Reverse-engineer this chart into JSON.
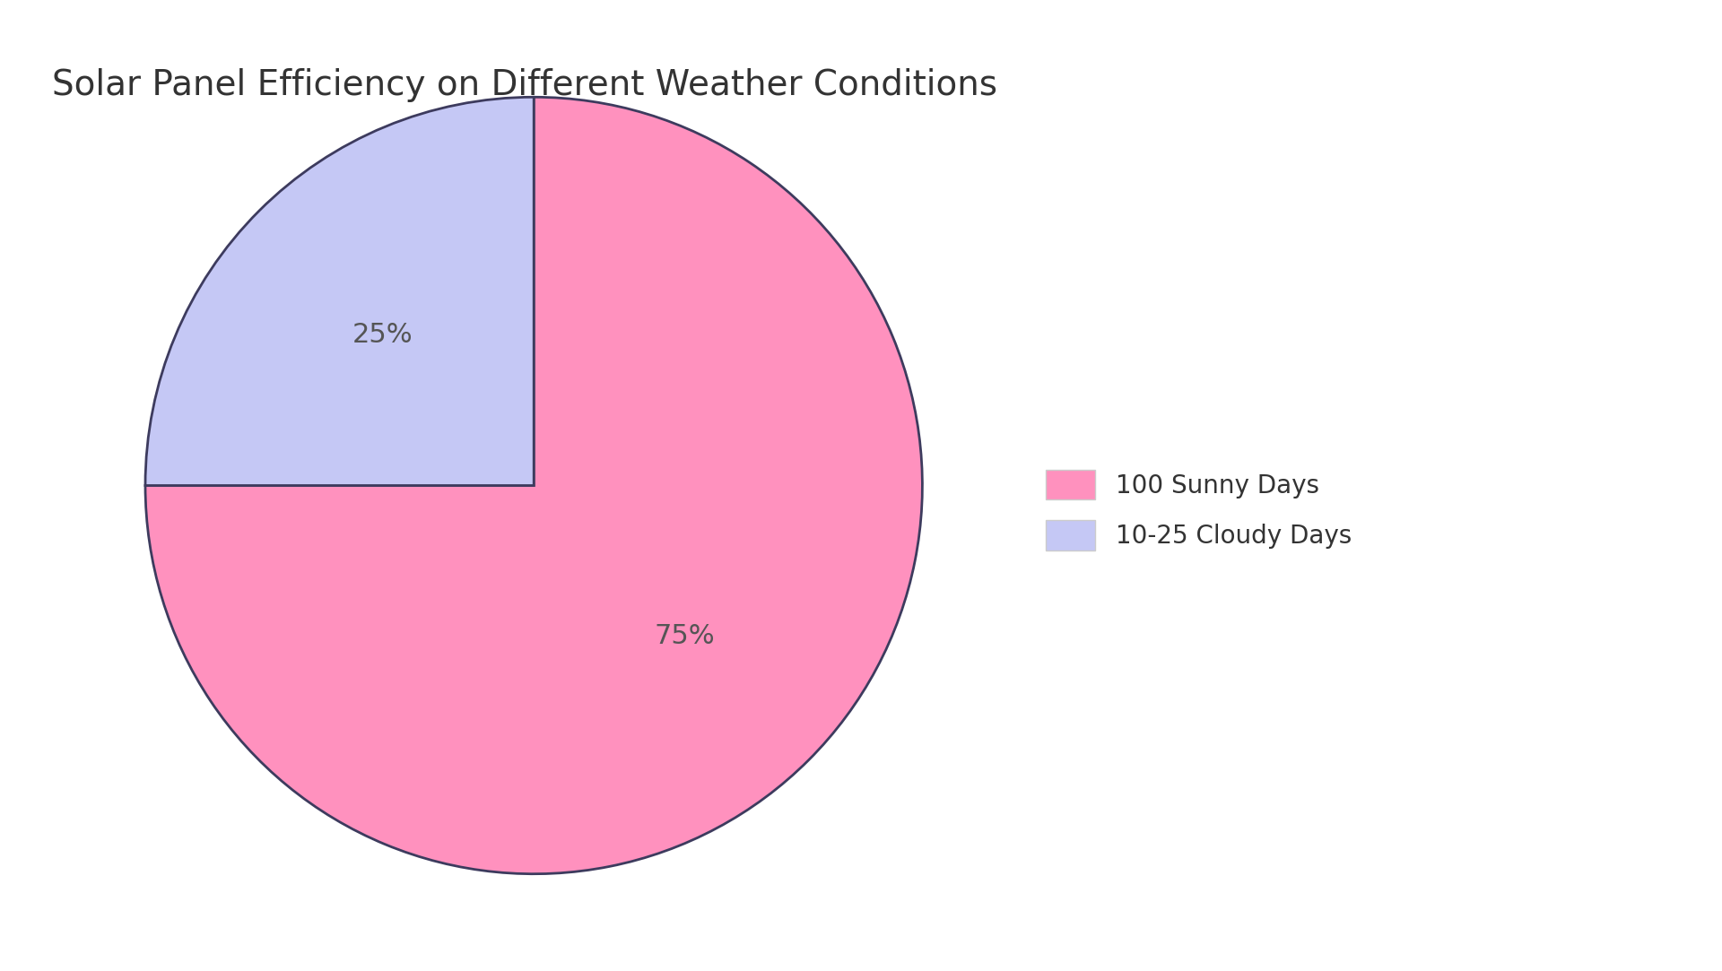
{
  "title": "Solar Panel Efficiency on Different Weather Conditions",
  "slices": [
    75,
    25
  ],
  "labels": [
    "100 Sunny Days",
    "10-25 Cloudy Days"
  ],
  "colors": [
    "#FF91BE",
    "#C5C8F5"
  ],
  "edge_color": "#3D3B5E",
  "edge_width": 2.0,
  "autopct_labels": [
    "75%",
    "25%"
  ],
  "startangle": 90,
  "title_fontsize": 28,
  "title_color": "#333333",
  "pct_fontsize": 22,
  "legend_fontsize": 20,
  "background_color": "#FFFFFF"
}
